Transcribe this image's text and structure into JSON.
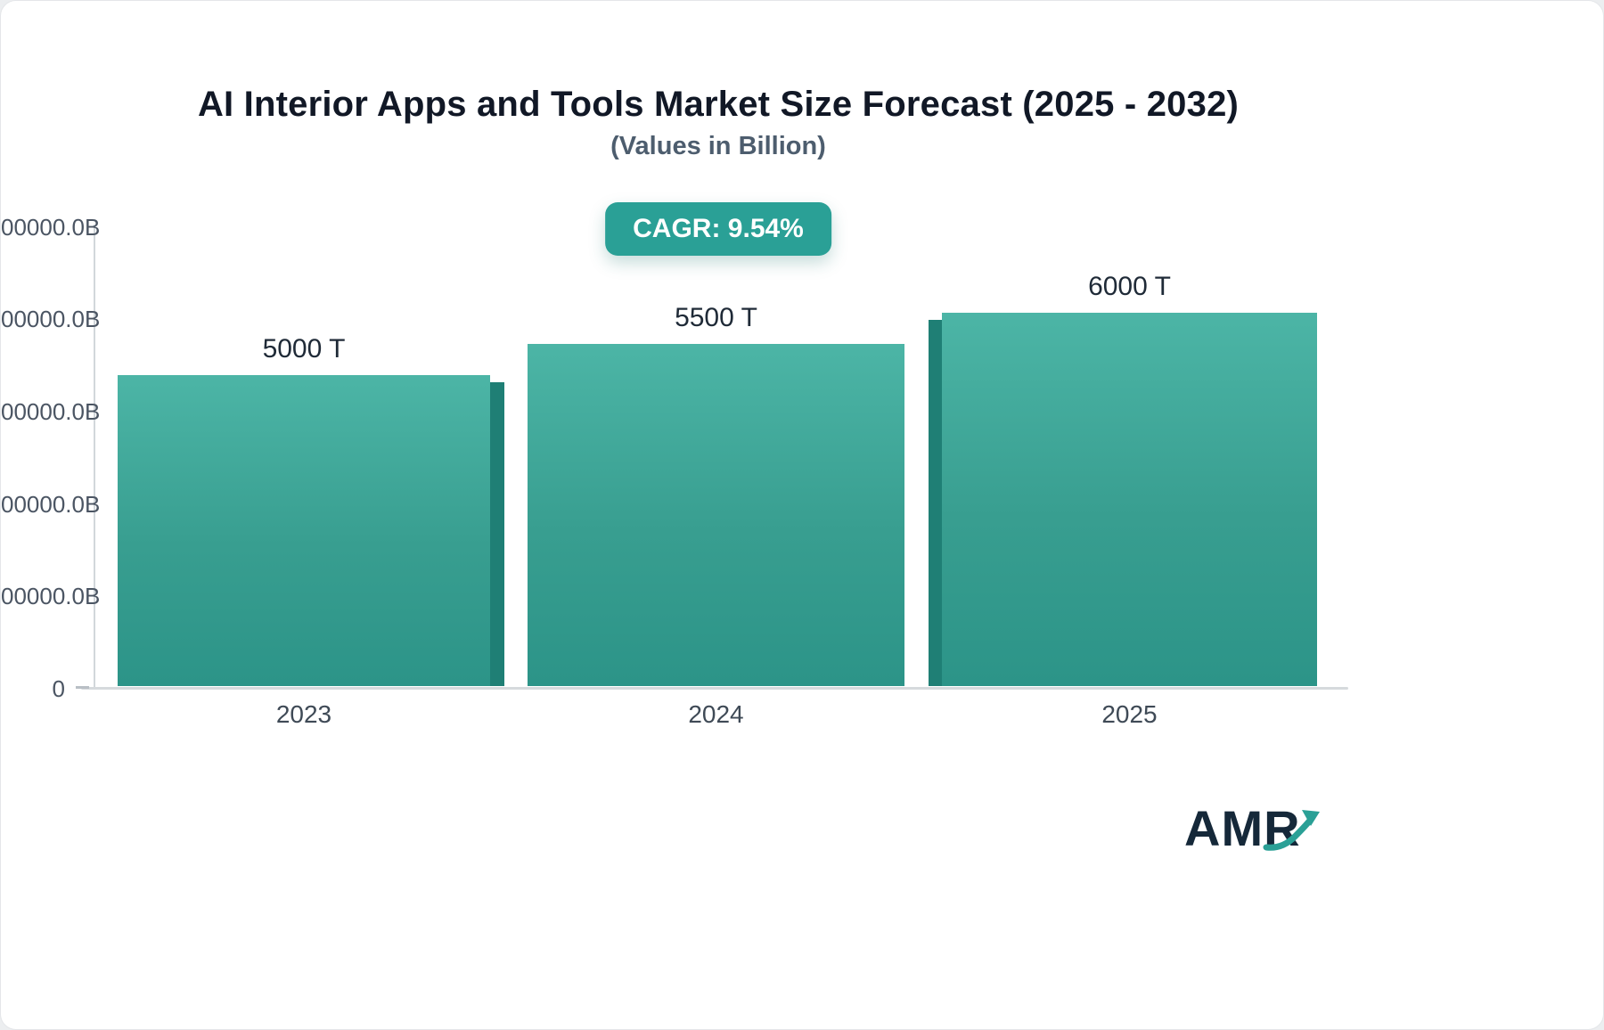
{
  "title": "AI Interior Apps and Tools Market Size Forecast (2025 - 2032)",
  "subtitle": "(Values in Billion)",
  "badge": {
    "label": "CAGR: 9.54%"
  },
  "logo": {
    "text": "AMR"
  },
  "colors": {
    "accent": "#2AA096",
    "bar_top": "#4CB5A6",
    "bar_bottom": "#2C9488",
    "bar_side": "#1F7F75",
    "axis": "#D6DADD",
    "title_text": "#111826",
    "subtitle_text": "#4D5D6E",
    "badge_text": "#FFFFFF",
    "logo_text": "#152839"
  },
  "chart_data": {
    "type": "bar",
    "title": "AI Interior Apps and Tools Market Size Forecast (2025 - 2032)",
    "subtitle": "(Values in Billion)",
    "cagr_label": "CAGR: 9.54%",
    "categories": [
      "2023",
      "2024",
      "2025"
    ],
    "values": [
      5000,
      5500,
      6000
    ],
    "value_labels": [
      "5000 T",
      "5500 T",
      "6000 T"
    ],
    "units": "T",
    "xlabel": "",
    "ylabel": "",
    "y_axis_tick_labels": [
      "00000.0B",
      "00000.0B",
      "00000.0B",
      "00000.0B",
      "00000.0B",
      "0"
    ],
    "ylim": [
      0,
      7400
    ],
    "grid": false,
    "legend": false,
    "bar_style": "3d-extruded"
  }
}
